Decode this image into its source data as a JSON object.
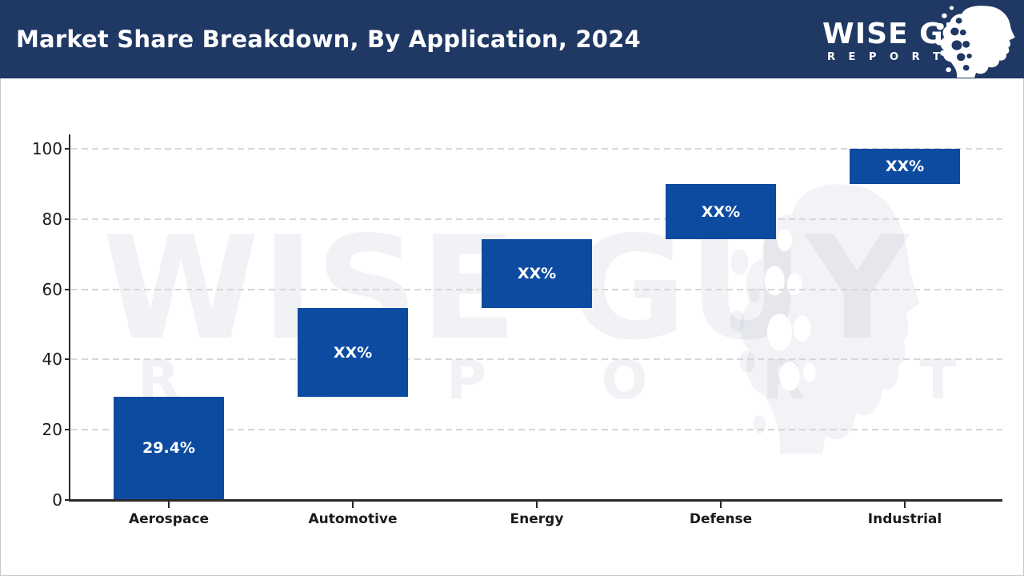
{
  "header": {
    "title": "Market Share Breakdown, By Application, 2024",
    "bg_color": "#1f3864",
    "logo": {
      "wordmark": "WISE GUY",
      "subtext": "R E P O R T S"
    }
  },
  "watermark": {
    "wordmark": "WISE GUY",
    "subtext": "R E P O R T S"
  },
  "chart_data": {
    "type": "bar",
    "subtype": "waterfall",
    "title": "Market Share Breakdown, By Application, 2024",
    "categories": [
      "Aerospace",
      "Automotive",
      "Energy",
      "Defense",
      "Industrial"
    ],
    "segments": [
      {
        "category": "Aerospace",
        "start": 0,
        "end": 29.4,
        "label": "29.4%"
      },
      {
        "category": "Automotive",
        "start": 29.4,
        "end": 54.6,
        "label": "XX%"
      },
      {
        "category": "Energy",
        "start": 54.6,
        "end": 74.2,
        "label": "XX%"
      },
      {
        "category": "Defense",
        "start": 74.2,
        "end": 90.0,
        "label": "XX%"
      },
      {
        "category": "Industrial",
        "start": 90.0,
        "end": 100.0,
        "label": "XX%"
      }
    ],
    "values": [
      29.4,
      25.2,
      19.6,
      15.8,
      10.0
    ],
    "unit": "%",
    "xlabel": "",
    "ylabel": "",
    "yticks": [
      0,
      20,
      40,
      60,
      80,
      100
    ],
    "ylim": [
      0,
      104
    ],
    "bar_color": "#0d4ba1",
    "label_color": "#ffffff",
    "axis_color": "#2a2a2a",
    "gridline_color": "#d7d7d7",
    "grid": "horizontal-dashed",
    "legend": "none"
  }
}
